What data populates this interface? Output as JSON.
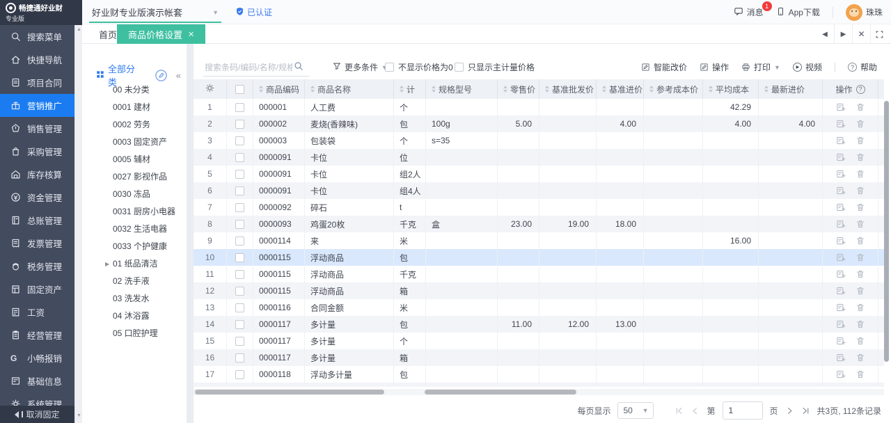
{
  "brand": {
    "name": "畅捷通好业财",
    "edition": "专业版"
  },
  "topbar": {
    "account_set": "好业财专业版演示帐套",
    "verified_badge": "已认证",
    "messages_label": "消息",
    "messages_count": "1",
    "app_download_label": "App下载",
    "username": "珠珠"
  },
  "tab_bar": {
    "home_tab": "首页",
    "active_tab": "商品价格设置"
  },
  "sidebar": {
    "items": [
      {
        "label": "搜索菜单",
        "icon": "search-icon",
        "active": false
      },
      {
        "label": "快捷导航",
        "icon": "home-icon",
        "active": false
      },
      {
        "label": "项目合同",
        "icon": "contract-icon",
        "active": false
      },
      {
        "label": "营销推广",
        "icon": "gift-icon",
        "active": true
      },
      {
        "label": "销售管理",
        "icon": "sales-icon",
        "active": false
      },
      {
        "label": "采购管理",
        "icon": "purchase-bag-icon",
        "active": false
      },
      {
        "label": "库存核算",
        "icon": "warehouse-icon",
        "active": false
      },
      {
        "label": "资金管理",
        "icon": "money-icon",
        "active": false
      },
      {
        "label": "总账管理",
        "icon": "ledger-icon",
        "active": false
      },
      {
        "label": "发票管理",
        "icon": "invoice-icon",
        "active": false
      },
      {
        "label": "税务管理",
        "icon": "tax-icon",
        "active": false
      },
      {
        "label": "固定资产",
        "icon": "fixed-asset-icon",
        "active": false
      },
      {
        "label": "工资",
        "icon": "salary-icon",
        "active": false
      },
      {
        "label": "经营管理",
        "icon": "management-icon",
        "active": false
      },
      {
        "label": "小畅报销",
        "icon": "reimburse-icon",
        "active": false
      },
      {
        "label": "基础信息",
        "icon": "base-info-icon",
        "active": false
      },
      {
        "label": "系统管理",
        "icon": "system-gear-icon",
        "active": false
      }
    ],
    "unpin_label": "取消固定"
  },
  "category_panel": {
    "title": "全部分类",
    "items": [
      {
        "label": "00 未分类",
        "expandable": false
      },
      {
        "label": "0001 建材",
        "expandable": false
      },
      {
        "label": "0002 劳务",
        "expandable": false
      },
      {
        "label": "0003 固定资产",
        "expandable": false
      },
      {
        "label": "0005 辅材",
        "expandable": false
      },
      {
        "label": "0027 影视作品",
        "expandable": false
      },
      {
        "label": "0030 冻品",
        "expandable": false
      },
      {
        "label": "0031 厨房小电器",
        "expandable": false
      },
      {
        "label": "0032 生活电器",
        "expandable": false
      },
      {
        "label": "0033 个护健康",
        "expandable": false
      },
      {
        "label": "01 纸品清洁",
        "expandable": true
      },
      {
        "label": "02 洗手液",
        "expandable": false
      },
      {
        "label": "03 洗发水",
        "expandable": false
      },
      {
        "label": "04 沐浴露",
        "expandable": false
      },
      {
        "label": "05 口腔护理",
        "expandable": false
      }
    ]
  },
  "toolbar": {
    "search_placeholder": "搜索条码/编码/名称/规格型号/别名",
    "more_filter_label": "更多条件",
    "hide_zero_label": "不显示价格为0",
    "main_unit_only_label": "只显示主计量价格",
    "smart_reprice_label": "智能改价",
    "operate_label": "操作",
    "print_label": "打印",
    "video_label": "视频",
    "help_label": "帮助"
  },
  "table": {
    "headers": [
      "商品编码",
      "商品名称",
      "计",
      "规格型号",
      "零售价",
      "基准批发价",
      "基准进价",
      "参考成本价",
      "平均成本",
      "最新进价",
      "操作"
    ],
    "rows": [
      {
        "num": "1",
        "code": "000001",
        "name": "人工费",
        "unit": "个",
        "spec": "",
        "retail": "",
        "wholesale": "",
        "purchase": "",
        "ref_cost": "",
        "avg_cost": "42.29",
        "latest": "",
        "highlighted": false
      },
      {
        "num": "2",
        "code": "000002",
        "name": "麦烧(香辣味)",
        "unit": "包",
        "spec": "100g",
        "retail": "5.00",
        "wholesale": "",
        "purchase": "4.00",
        "ref_cost": "",
        "avg_cost": "4.00",
        "latest": "4.00",
        "highlighted": false
      },
      {
        "num": "3",
        "code": "000003",
        "name": "包装袋",
        "unit": "个",
        "spec": "s=35",
        "retail": "",
        "wholesale": "",
        "purchase": "",
        "ref_cost": "",
        "avg_cost": "",
        "latest": "",
        "highlighted": false
      },
      {
        "num": "4",
        "code": "0000091",
        "name": "卡位",
        "unit": "位",
        "spec": "",
        "retail": "",
        "wholesale": "",
        "purchase": "",
        "ref_cost": "",
        "avg_cost": "",
        "latest": "",
        "highlighted": false
      },
      {
        "num": "5",
        "code": "0000091",
        "name": "卡位",
        "unit": "组2人",
        "spec": "",
        "retail": "",
        "wholesale": "",
        "purchase": "",
        "ref_cost": "",
        "avg_cost": "",
        "latest": "",
        "highlighted": false
      },
      {
        "num": "6",
        "code": "0000091",
        "name": "卡位",
        "unit": "组4人",
        "spec": "",
        "retail": "",
        "wholesale": "",
        "purchase": "",
        "ref_cost": "",
        "avg_cost": "",
        "latest": "",
        "highlighted": false
      },
      {
        "num": "7",
        "code": "0000092",
        "name": "碎石",
        "unit": "t",
        "spec": "",
        "retail": "",
        "wholesale": "",
        "purchase": "",
        "ref_cost": "",
        "avg_cost": "",
        "latest": "",
        "highlighted": false
      },
      {
        "num": "8",
        "code": "0000093",
        "name": "鸡蛋20枚",
        "unit": "千克",
        "spec": "盒",
        "retail": "23.00",
        "wholesale": "19.00",
        "purchase": "18.00",
        "ref_cost": "",
        "avg_cost": "",
        "latest": "",
        "highlighted": false
      },
      {
        "num": "9",
        "code": "0000114",
        "name": "来",
        "unit": "米",
        "spec": "",
        "retail": "",
        "wholesale": "",
        "purchase": "",
        "ref_cost": "",
        "avg_cost": "16.00",
        "latest": "",
        "highlighted": false
      },
      {
        "num": "10",
        "code": "0000115",
        "name": "浮动商品",
        "unit": "包",
        "spec": "",
        "retail": "",
        "wholesale": "",
        "purchase": "",
        "ref_cost": "",
        "avg_cost": "",
        "latest": "",
        "highlighted": true
      },
      {
        "num": "11",
        "code": "0000115",
        "name": "浮动商品",
        "unit": "千克",
        "spec": "",
        "retail": "",
        "wholesale": "",
        "purchase": "",
        "ref_cost": "",
        "avg_cost": "",
        "latest": "",
        "highlighted": false
      },
      {
        "num": "12",
        "code": "0000115",
        "name": "浮动商品",
        "unit": "箱",
        "spec": "",
        "retail": "",
        "wholesale": "",
        "purchase": "",
        "ref_cost": "",
        "avg_cost": "",
        "latest": "",
        "highlighted": false
      },
      {
        "num": "13",
        "code": "0000116",
        "name": "合同金额",
        "unit": "米",
        "spec": "",
        "retail": "",
        "wholesale": "",
        "purchase": "",
        "ref_cost": "",
        "avg_cost": "",
        "latest": "",
        "highlighted": false
      },
      {
        "num": "14",
        "code": "0000117",
        "name": "多计量",
        "unit": "包",
        "spec": "",
        "retail": "11.00",
        "wholesale": "12.00",
        "purchase": "13.00",
        "ref_cost": "",
        "avg_cost": "",
        "latest": "",
        "highlighted": false
      },
      {
        "num": "15",
        "code": "0000117",
        "name": "多计量",
        "unit": "个",
        "spec": "",
        "retail": "",
        "wholesale": "",
        "purchase": "",
        "ref_cost": "",
        "avg_cost": "",
        "latest": "",
        "highlighted": false
      },
      {
        "num": "16",
        "code": "0000117",
        "name": "多计量",
        "unit": "箱",
        "spec": "",
        "retail": "",
        "wholesale": "",
        "purchase": "",
        "ref_cost": "",
        "avg_cost": "",
        "latest": "",
        "highlighted": false
      },
      {
        "num": "17",
        "code": "0000118",
        "name": "浮动多计量",
        "unit": "包",
        "spec": "",
        "retail": "",
        "wholesale": "",
        "purchase": "",
        "ref_cost": "",
        "avg_cost": "",
        "latest": "",
        "highlighted": false
      }
    ]
  },
  "pagination": {
    "page_size_label": "每页显示",
    "page_size": "50",
    "page_prefix": "第",
    "current_page": "1",
    "page_suffix": "页",
    "summary": "共3页, 112条记录"
  },
  "colors": {
    "accent_green": "#3ec0a0",
    "active_blue": "#1a7cf0",
    "badge_red": "#f03b3b",
    "link_blue": "#2e7bf0",
    "sidebar_dark": "#434b5e"
  }
}
